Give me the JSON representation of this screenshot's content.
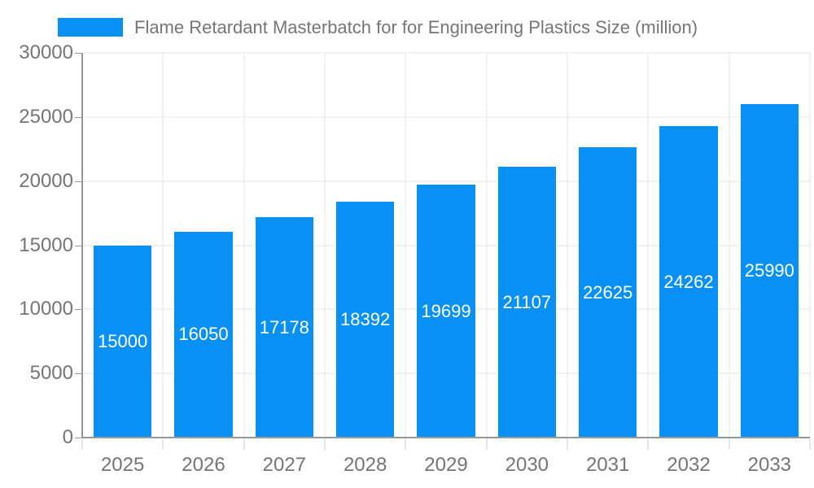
{
  "legend": {
    "label": "Flame Retardant Masterbatch for for Engineering Plastics Size (million)"
  },
  "chart_data": {
    "type": "bar",
    "title": "Flame Retardant Masterbatch for for Engineering Plastics Size (million)",
    "categories": [
      "2025",
      "2026",
      "2027",
      "2028",
      "2029",
      "2030",
      "2031",
      "2032",
      "2033"
    ],
    "values": [
      15000,
      16050,
      17178,
      18392,
      19699,
      21107,
      22625,
      24262,
      25990
    ],
    "xlabel": "",
    "ylabel": "",
    "ylim": [
      0,
      30000
    ],
    "yticks": [
      0,
      5000,
      10000,
      15000,
      20000,
      25000,
      30000
    ],
    "grid": true,
    "legend_position": "top-left",
    "bar_color": "#0990f5",
    "value_label_color": "#ffffff",
    "axis_color": "#999999",
    "grid_color": "#e6e6e6",
    "text_color": "#757575"
  }
}
